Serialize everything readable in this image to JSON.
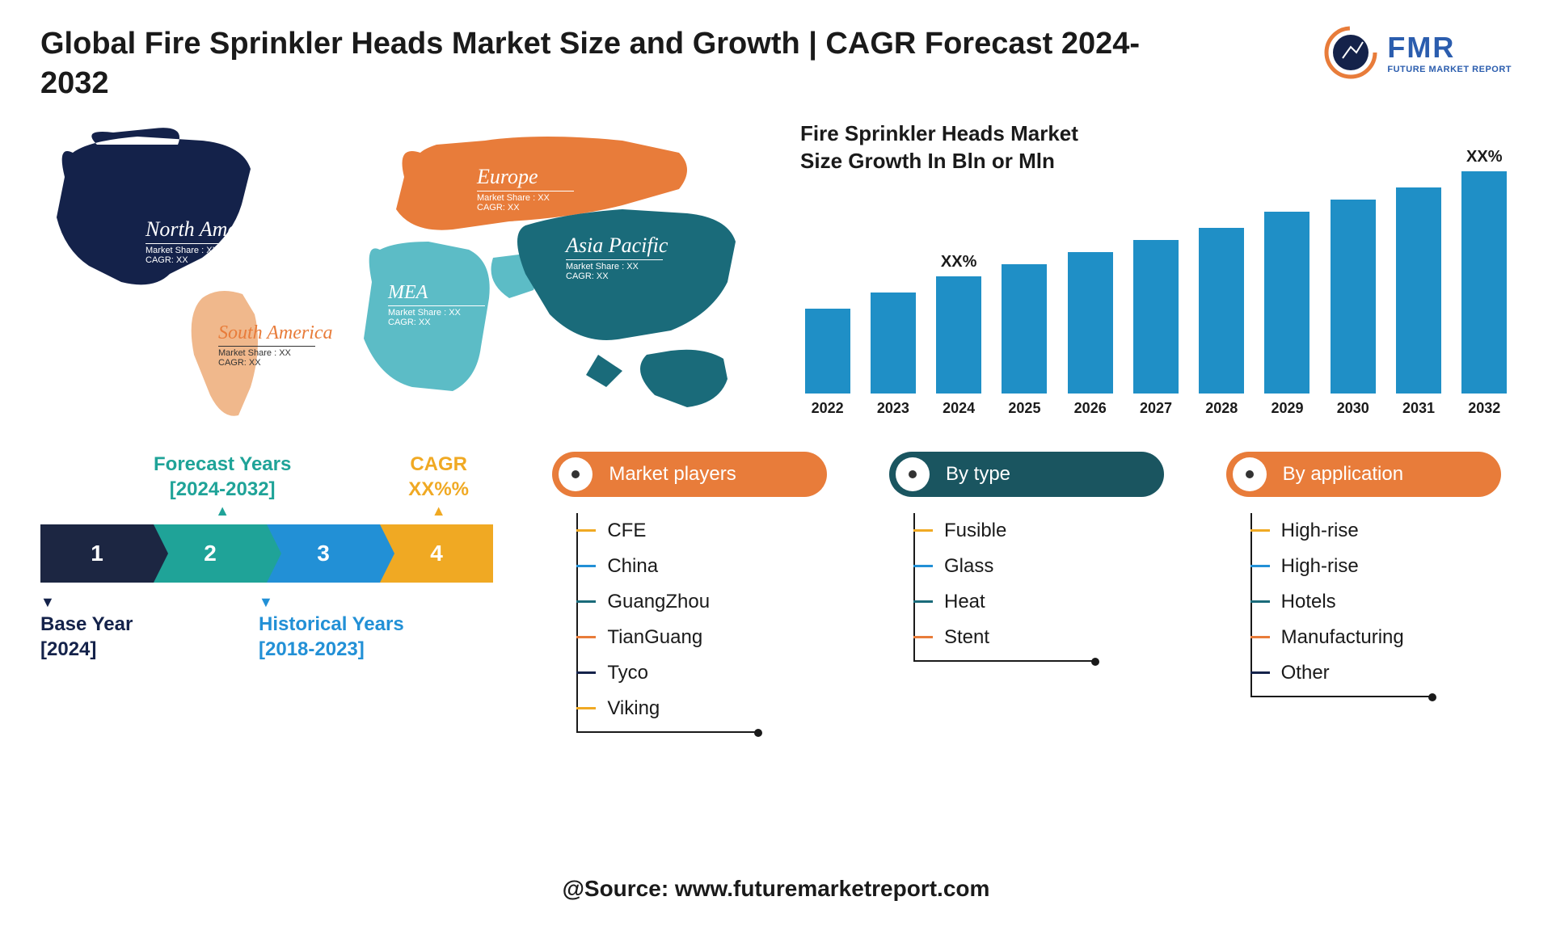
{
  "title": "Global Fire Sprinkler Heads Market Size and Growth | CAGR Forecast 2024-2032",
  "logo": {
    "fmr": "FMR",
    "sub": "FUTURE MARKET REPORT"
  },
  "map": {
    "regions": [
      {
        "name": "North America",
        "color": "#14224a",
        "share": "Market Share : XX",
        "cagr": "CAGR: XX"
      },
      {
        "name": "South America",
        "color": "#f0b88c",
        "share": "Market Share : XX",
        "cagr": "CAGR: XX",
        "dark_text": true
      },
      {
        "name": "Europe",
        "color": "#e87c3a",
        "share": "Market Share : XX",
        "cagr": "CAGR: XX"
      },
      {
        "name": "MEA",
        "color": "#5cbcc6",
        "share": "Market Share : XX",
        "cagr": "CAGR: XX"
      },
      {
        "name": "Asia Pacific",
        "color": "#1a6b7a",
        "share": "Market Share : XX",
        "cagr": "CAGR: XX"
      }
    ]
  },
  "bar_chart": {
    "title": "Fire Sprinkler Heads Market Size Growth In Bln or Mln",
    "bar_color": "#1f8fc6",
    "years": [
      "2022",
      "2023",
      "2024",
      "2025",
      "2026",
      "2027",
      "2028",
      "2029",
      "2030",
      "2031",
      "2032"
    ],
    "heights": [
      105,
      125,
      145,
      160,
      175,
      190,
      205,
      225,
      240,
      255,
      275
    ],
    "pct_labels": {
      "2": "XX%",
      "10": "XX%"
    }
  },
  "timeline": {
    "segments": [
      {
        "n": "1",
        "color": "#1c2642",
        "arrow_color": "#1c2642"
      },
      {
        "n": "2",
        "color": "#1fa398",
        "arrow_color": "#1fa398"
      },
      {
        "n": "3",
        "color": "#2290d6",
        "arrow_color": "#2290d6"
      },
      {
        "n": "4",
        "color": "#f0a923",
        "arrow_color": "#f0a923"
      }
    ],
    "annotations": {
      "base": {
        "label": "Base Year",
        "sub": "[2024]",
        "color": "#14224a"
      },
      "forecast": {
        "label": "Forecast Years",
        "sub": "[2024-2032]",
        "color": "#1fa398"
      },
      "historical": {
        "label": "Historical Years",
        "sub": "[2018-2023]",
        "color": "#2290d6"
      },
      "cagr": {
        "label": "CAGR",
        "sub": "XX%%",
        "color": "#f0a923"
      }
    }
  },
  "categories": [
    {
      "title": "Market players",
      "header_color": "#e87c3a",
      "items": [
        {
          "label": "CFE",
          "tick": "#f0a923"
        },
        {
          "label": "China",
          "tick": "#2290d6"
        },
        {
          "label": "GuangZhou",
          "tick": "#1a6b7a"
        },
        {
          "label": "TianGuang",
          "tick": "#e87c3a"
        },
        {
          "label": "Tyco",
          "tick": "#14224a"
        },
        {
          "label": "Viking",
          "tick": "#f0a923"
        }
      ]
    },
    {
      "title": "By type",
      "header_color": "#1a5560",
      "items": [
        {
          "label": "Fusible",
          "tick": "#f0a923"
        },
        {
          "label": "Glass",
          "tick": "#2290d6"
        },
        {
          "label": "Heat",
          "tick": "#1a6b7a"
        },
        {
          "label": "Stent",
          "tick": "#e87c3a"
        }
      ]
    },
    {
      "title": "By application",
      "header_color": "#e87c3a",
      "items": [
        {
          "label": "High-rise",
          "tick": "#f0a923"
        },
        {
          "label": "High-rise",
          "tick": "#2290d6"
        },
        {
          "label": "Hotels",
          "tick": "#1a6b7a"
        },
        {
          "label": "Manufacturing",
          "tick": "#e87c3a"
        },
        {
          "label": "Other",
          "tick": "#14224a"
        }
      ]
    }
  ],
  "source": "@Source: www.futuremarketreport.com"
}
